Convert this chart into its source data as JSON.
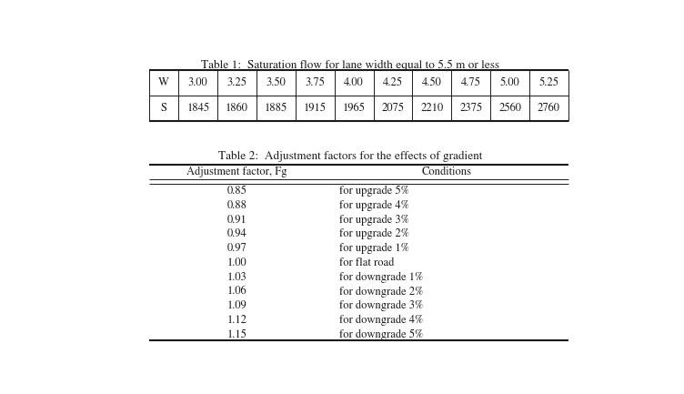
{
  "table1_title": "Table 1:  Saturation flow for lane width equal to 5.5 m or less",
  "table1_col1_header": "W",
  "table1_col2_header": "S",
  "table1_w_values": [
    "3.00",
    "3.25",
    "3.50",
    "3.75",
    "4.00",
    "4.25",
    "4.50",
    "4.75",
    "5.00",
    "5.25"
  ],
  "table1_s_values": [
    "1845",
    "1860",
    "1885",
    "1915",
    "1965",
    "2075",
    "2210",
    "2375",
    "2560",
    "2760"
  ],
  "table2_title": "Table 2:  Adjustment factors for the effects of gradient",
  "table2_col1_header": "Adjustment factor, Fg",
  "table2_col2_header": "Conditions",
  "table2_fg_values": [
    "0.85",
    "0.88",
    "0.91",
    "0.94",
    "0.97",
    "1.00",
    "1.03",
    "1.06",
    "1.09",
    "1.12",
    "1.15"
  ],
  "table2_cond_values": [
    "for upgrade 5%",
    "for upgrade 4%",
    "for upgrade 3%",
    "for upgrade 2%",
    "for upgrade 1%",
    "for flat road",
    "for downgrade 1%",
    "for downgrade 2%",
    "for downgrade 3%",
    "for downgrade 4%",
    "for downgrade 5%"
  ],
  "background_color": "#ffffff",
  "text_color": "#1a1a1a",
  "font_size": 9.0,
  "title_font_size": 9.5,
  "thick_lw": 1.5,
  "thin_lw": 0.7
}
